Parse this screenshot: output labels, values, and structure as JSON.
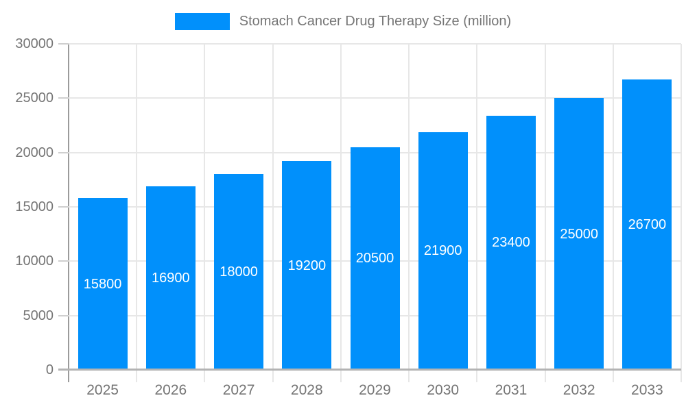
{
  "chart_data": {
    "type": "bar",
    "legend": "Stomach Cancer Drug Therapy Size (million)",
    "legend_position": "top",
    "categories": [
      "2025",
      "2026",
      "2027",
      "2028",
      "2029",
      "2030",
      "2031",
      "2032",
      "2033"
    ],
    "values": [
      15800,
      16900,
      18000,
      19200,
      20500,
      21900,
      23400,
      25000,
      26700
    ],
    "title": "",
    "xlabel": "",
    "ylabel": "",
    "ylim": [
      0,
      30000
    ],
    "yticks": [
      0,
      5000,
      10000,
      15000,
      20000,
      25000,
      30000
    ],
    "grid": true,
    "colors": {
      "bar": "#0190fb",
      "value_label": "#ffffff",
      "axis_text": "#757575",
      "gridline": "#e7e7e7",
      "axis_line": "#b3b3b3",
      "yaxis_line": "#9b9b9b"
    }
  }
}
